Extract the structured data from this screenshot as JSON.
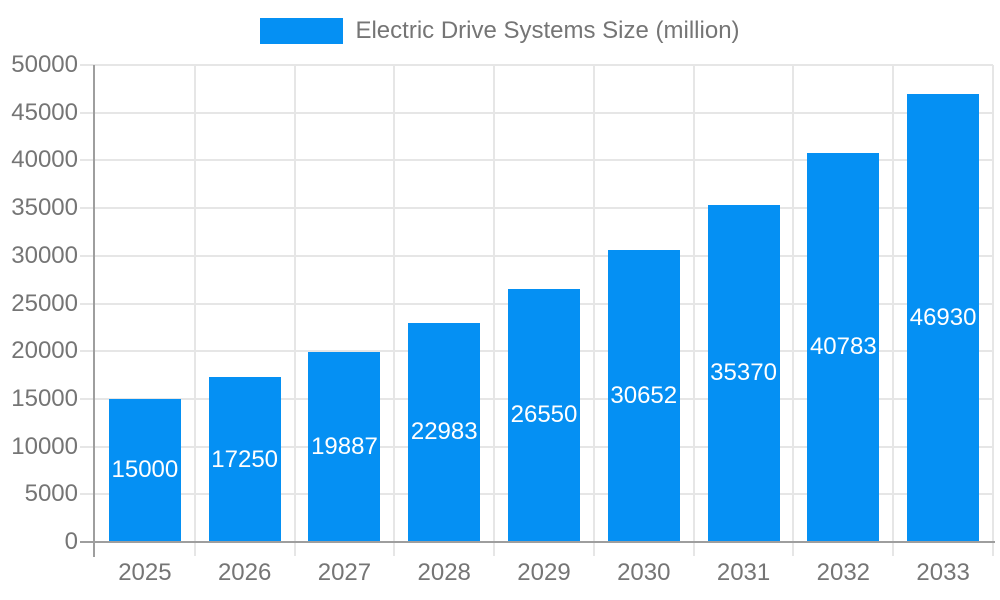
{
  "chart_data": {
    "type": "bar",
    "title": "Electric Drive Systems Size (million)",
    "categories": [
      "2025",
      "2026",
      "2027",
      "2028",
      "2029",
      "2030",
      "2031",
      "2032",
      "2033"
    ],
    "series": [
      {
        "name": "Electric Drive Systems Size (million)",
        "values": [
          15000,
          17250,
          19887,
          22983,
          26550,
          30652,
          35370,
          40783,
          46930
        ]
      }
    ],
    "value_labels": [
      "15000",
      "17250",
      "19887",
      "22983",
      "26550",
      "30652",
      "35370",
      "40783",
      "46930"
    ],
    "xlabel": "",
    "ylabel": "",
    "ylim": [
      0,
      50000
    ],
    "ytick_step": 5000,
    "ytick_labels": [
      "0",
      "5000",
      "10000",
      "15000",
      "20000",
      "25000",
      "30000",
      "35000",
      "40000",
      "45000",
      "50000"
    ],
    "grid": true,
    "legend_position": "top",
    "colors": {
      "bar": "#0590f3",
      "gridline": "#e6e6e6",
      "axis": "#9e9e9e",
      "tick_text": "#757575",
      "value_label": "#ffffff",
      "background": "#ffffff"
    }
  }
}
